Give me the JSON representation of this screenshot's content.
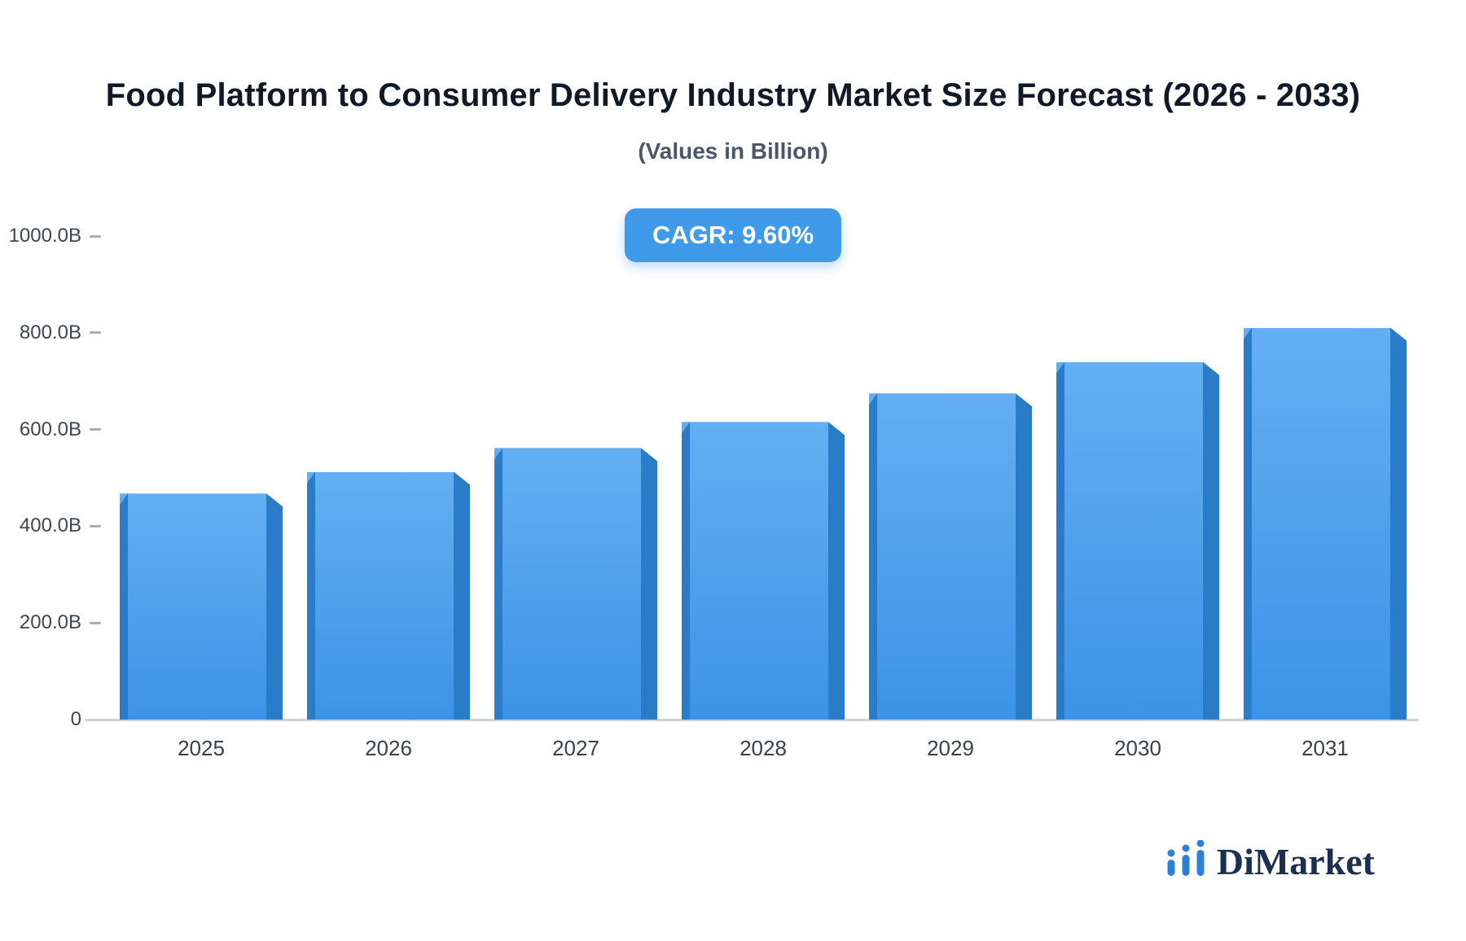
{
  "header": {
    "title": "Food Platform to Consumer Delivery Industry Market Size Forecast (2026 - 2033)",
    "subtitle": "(Values in Billion)"
  },
  "badge": {
    "label": "CAGR: 9.60%"
  },
  "footer": {
    "logo_text": "DiMarket"
  },
  "colors": {
    "badge_bg": "#3F9BEA",
    "bar_top": "#63AFF2",
    "bar_bottom": "#3D93E6",
    "bar_side": "#2B7CC8",
    "logo_blue": "#2E7FD6",
    "logo_navy": "#1A2F52"
  },
  "chart_data": {
    "type": "bar",
    "title": "Food Platform to Consumer Delivery Industry Market Size Forecast (2026 - 2033)",
    "subtitle": "(Values in Billion)",
    "annotation": "CAGR: 9.60%",
    "categories": [
      "2025",
      "2026",
      "2027",
      "2028",
      "2029",
      "2030",
      "2031"
    ],
    "values": [
      467.7,
      512.6,
      561.8,
      615.7,
      674.8,
      739.6,
      810.6
    ],
    "value_labels": [
      "467.7 B",
      "512.6 B",
      "561.8 B",
      "615.7 B",
      "674.8 B",
      "739.6 B",
      "810.6 B"
    ],
    "y_ticks": [
      "1000.0B",
      "800.0B",
      "600.0B",
      "400.0B",
      "200.0B",
      "0"
    ],
    "ylim": [
      0,
      1000
    ],
    "xlabel": "",
    "ylabel": "",
    "grid": false,
    "legend": false,
    "bar_color": "#4AA2EF"
  }
}
